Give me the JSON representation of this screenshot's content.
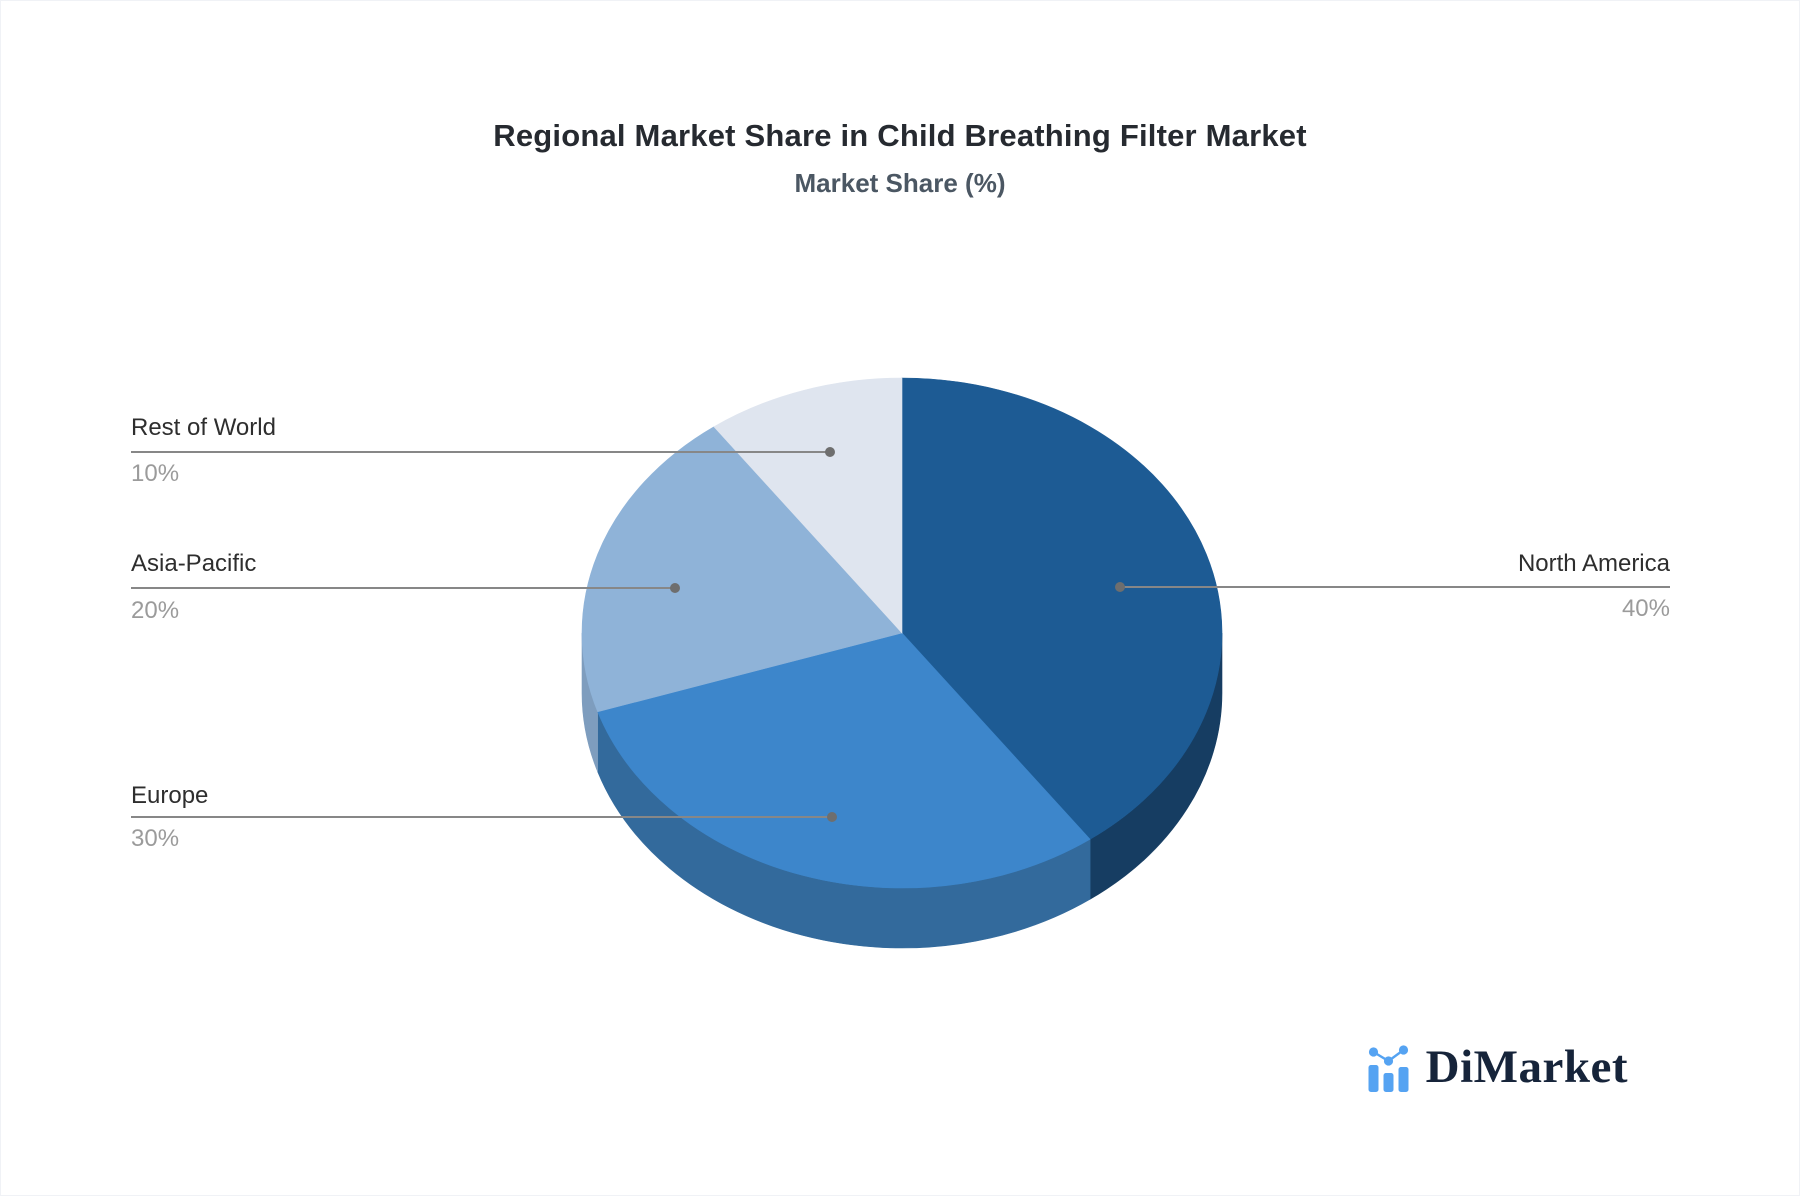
{
  "header": {
    "title": "Regional Market Share in Child Breathing Filter Market",
    "subtitle": "Market Share (%)"
  },
  "chart_data": {
    "type": "pie",
    "style": "3d",
    "title": "Regional Market Share in Child Breathing Filter Market",
    "subtitle": "Market Share (%)",
    "unit": "%",
    "categories": [
      "North America",
      "Europe",
      "Asia-Pacific",
      "Rest of World"
    ],
    "values": [
      40,
      30,
      20,
      10
    ],
    "start_angle_deg": 0,
    "direction": "clockwise",
    "legend": "none",
    "slice_colors": [
      "#1d5b94",
      "#3d86cb",
      "#8fb3d8",
      "#dfe5ef"
    ],
    "slice_side_colors": [
      "#163d62",
      "#336a9c",
      "#7e9dbe",
      "#c3cddd"
    ],
    "labels": [
      {
        "name": "North America",
        "pct": "40%",
        "side": "right"
      },
      {
        "name": "Europe",
        "pct": "30%",
        "side": "left"
      },
      {
        "name": "Asia-Pacific",
        "pct": "20%",
        "side": "left"
      },
      {
        "name": "Rest of World",
        "pct": "10%",
        "side": "left"
      }
    ],
    "leader_line_color": "#878787",
    "leader_dot_color": "#6e6e6e",
    "label_text_color": "#2e2e2e",
    "pct_text_color": "#9b9b9b"
  },
  "brand": {
    "name": "DiMarket",
    "logo_icon": "mini-bar-line-chart-icon",
    "icon_color": "#55a3f2",
    "text_color": "#16243a"
  }
}
